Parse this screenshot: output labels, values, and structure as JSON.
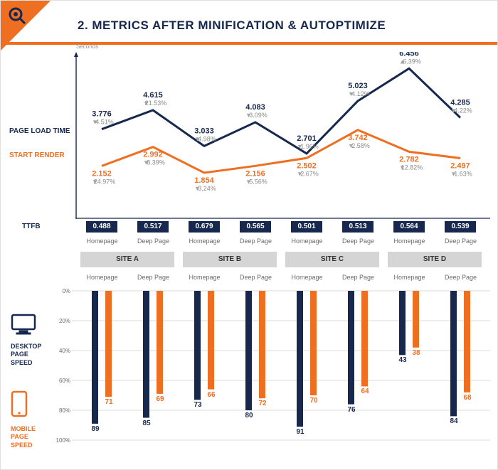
{
  "colors": {
    "navy": "#17284f",
    "orange": "#ee6f22",
    "gridGrey": "#cfcfcf",
    "lightGrey": "#d5d5d5",
    "textGrey": "#6b6b6b",
    "midGrey": "#8a8a8a",
    "white": "#ffffff"
  },
  "title": "2. METRICS AFTER MINIFICATION & AUTOPTIMIZE",
  "title_fontsize": 17,
  "yAxis": {
    "label": "Seconds",
    "min": 0,
    "max": 7,
    "ticks": [
      0,
      1,
      2,
      3,
      4,
      5,
      6,
      7
    ]
  },
  "categories": [
    "Homepage",
    "Deep Page",
    "Homepage",
    "Deep Page",
    "Homepage",
    "Deep Page",
    "Homepage",
    "Deep Page"
  ],
  "sites": [
    "SITE A",
    "SITE B",
    "SITE C",
    "SITE D"
  ],
  "series": {
    "pageLoad": {
      "label": "PAGE LOAD TIME",
      "color": "#17284f",
      "stroke": 3,
      "points": [
        {
          "v": 3.776,
          "p": "4.51%"
        },
        {
          "v": 4.615,
          "p": "21.53%"
        },
        {
          "v": 3.033,
          "p": "4.98%"
        },
        {
          "v": 4.083,
          "p": "3.09%"
        },
        {
          "v": 2.701,
          "p": "1.96%"
        },
        {
          "v": 5.023,
          "p": "4.12%"
        },
        {
          "v": 6.456,
          "p": "6.39%"
        },
        {
          "v": 4.285,
          "p": "4.22%"
        }
      ]
    },
    "startRender": {
      "label": "START RENDER",
      "color": "#ee6f22",
      "stroke": 3,
      "points": [
        {
          "v": 2.152,
          "p": "24.97%"
        },
        {
          "v": 2.992,
          "p": "8.39%"
        },
        {
          "v": 1.854,
          "p": "3.24%"
        },
        {
          "v": 2.156,
          "p": "5.56%"
        },
        {
          "v": 2.502,
          "p": "2.67%"
        },
        {
          "v": 3.742,
          "p": "2.58%"
        },
        {
          "v": 2.782,
          "p": "12.82%"
        },
        {
          "v": 2.497,
          "p": "1.63%"
        }
      ]
    },
    "ttfb": {
      "label": "TTFB",
      "boxColor": "#17284f",
      "textColor": "#ffffff",
      "values": [
        "0.488",
        "0.517",
        "0.679",
        "0.565",
        "0.501",
        "0.513",
        "0.564",
        "0.539"
      ]
    }
  },
  "bottomChart": {
    "yTicks": [
      "0%",
      "20%",
      "40%",
      "60%",
      "80%",
      "100%"
    ],
    "desktop": {
      "label": "DESKTOP PAGE SPEED",
      "iconColor": "#17284f",
      "barColor": "#17284f",
      "values": [
        89,
        85,
        73,
        80,
        91,
        76,
        43,
        84
      ]
    },
    "mobile": {
      "label": "MOBILE PAGE SPEED",
      "iconColor": "#ee6f22",
      "barColor": "#ee6f22",
      "values": [
        71,
        69,
        66,
        72,
        70,
        64,
        38,
        68
      ]
    }
  },
  "pl_up_idx": [
    6
  ],
  "sr_up_idx": []
}
